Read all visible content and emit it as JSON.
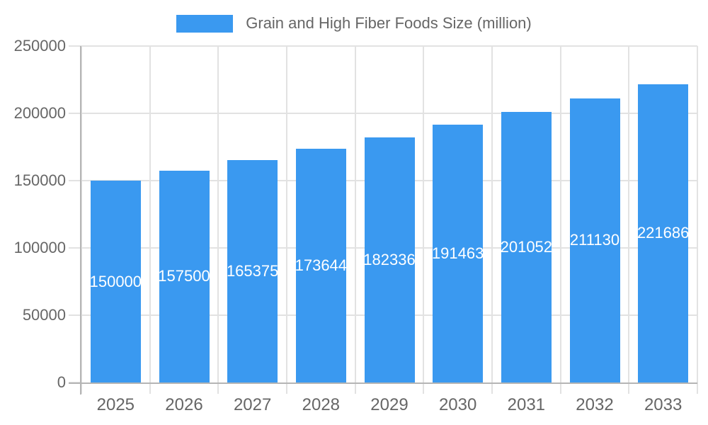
{
  "chart_data": {
    "type": "bar",
    "legend_label": "Grain and High Fiber Foods Size (million)",
    "legend_position": "top",
    "categories": [
      "2025",
      "2026",
      "2027",
      "2028",
      "2029",
      "2030",
      "2031",
      "2032",
      "2033"
    ],
    "values": [
      150000,
      157500,
      165375,
      173644,
      182336,
      191463,
      201052,
      211130,
      221686
    ],
    "value_labels_visible": true,
    "xlabel": "",
    "ylabel": "",
    "ylim": [
      0,
      250000
    ],
    "yticks": [
      0,
      50000,
      100000,
      150000,
      200000,
      250000
    ],
    "grid": true,
    "colors": {
      "bar": "#3A99F0",
      "grid_line": "#E2E2E2",
      "axis_line": "#B5B5B5",
      "tick_text": "#666666",
      "value_label_text": "#FFFFFF",
      "background": "#FFFFFF"
    }
  }
}
